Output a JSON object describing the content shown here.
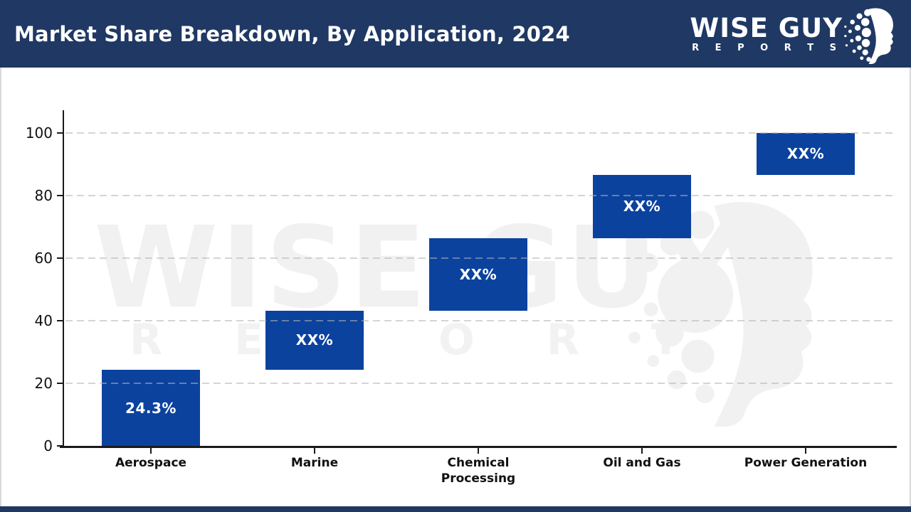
{
  "header": {
    "title": "Market Share Breakdown, By Application, 2024",
    "logo": {
      "line1": "WISE GUY",
      "line2": "R E P O R T S"
    }
  },
  "watermark": {
    "line1": "WISE GUY",
    "line2": "R E P O R T S"
  },
  "colors": {
    "header_bg": "#1F3864",
    "bar_fill": "#0b429e",
    "bar_label_text": "#ffffff",
    "axis": "#1a1a1a",
    "gridline": "#d6d6d6",
    "watermark": "#f1f1f1"
  },
  "chart_data": {
    "type": "bar",
    "subtype": "waterfall",
    "title": "Market Share Breakdown, By Application, 2024",
    "xlabel": "",
    "ylabel": "",
    "ylim": [
      0,
      100
    ],
    "yticks": [
      0,
      20,
      40,
      60,
      80,
      100
    ],
    "grid": "horizontal-dashed",
    "legend": null,
    "categories": [
      "Aerospace",
      "Marine",
      "Chemical\nProcessing",
      "Oil and Gas",
      "Power Generation"
    ],
    "bars": [
      {
        "category": "Aerospace",
        "value_label": "24.3%",
        "start": 0,
        "end": 24.3
      },
      {
        "category": "Marine",
        "value_label": "XX%",
        "start": 24.3,
        "end": 43.2
      },
      {
        "category": "Chemical Processing",
        "value_label": "XX%",
        "start": 43.2,
        "end": 66.4
      },
      {
        "category": "Oil and Gas",
        "value_label": "XX%",
        "start": 66.4,
        "end": 86.6
      },
      {
        "category": "Power Generation",
        "value_label": "XX%",
        "start": 86.6,
        "end": 100
      }
    ]
  }
}
